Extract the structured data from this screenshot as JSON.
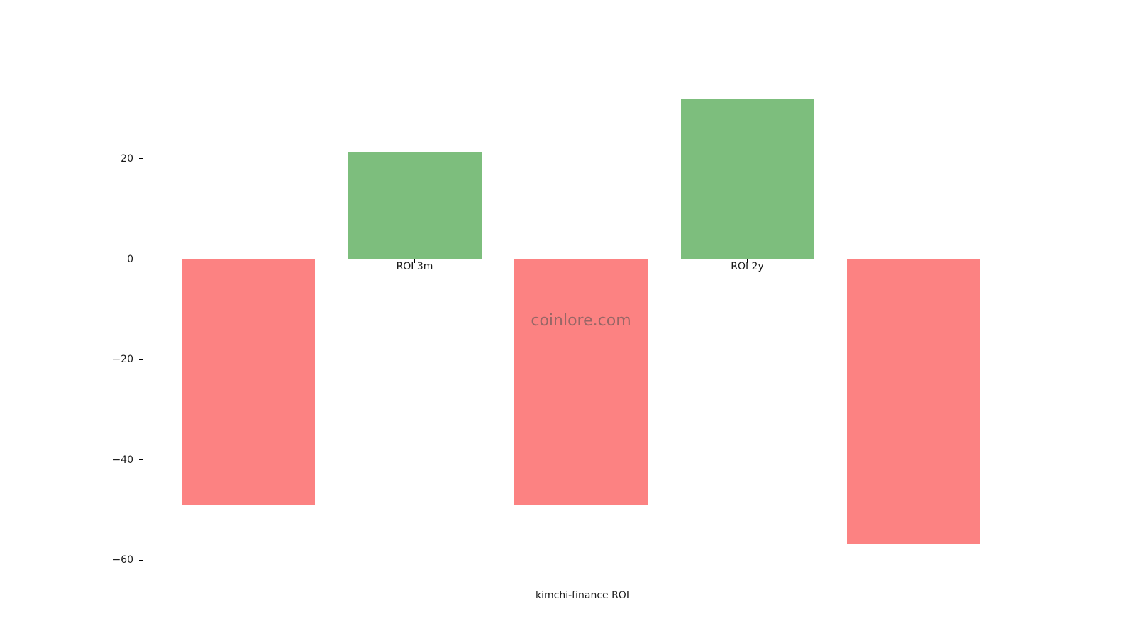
{
  "chart_data": {
    "type": "bar",
    "title": "",
    "xlabel": "kimchi-finance ROI",
    "ylabel": "",
    "bars": [
      {
        "label": "",
        "value": -49
      },
      {
        "label": "ROI 3m",
        "value": 21.2
      },
      {
        "label": "",
        "value": -49
      },
      {
        "label": "ROI 2y",
        "value": 32
      },
      {
        "label": "",
        "value": -56.8
      }
    ],
    "categories": [
      "",
      "ROI 3m",
      "",
      "ROI 2y",
      ""
    ],
    "values": [
      -49,
      21.2,
      -49,
      32,
      -56.8
    ],
    "yticks": [
      {
        "value": 20,
        "label": "20"
      },
      {
        "value": 0,
        "label": "0"
      },
      {
        "value": -20,
        "label": "−20"
      },
      {
        "value": -40,
        "label": "−40"
      },
      {
        "value": -60,
        "label": "−60"
      }
    ],
    "ylim": [
      -61.7,
      36.6
    ],
    "grid": false,
    "legend": false,
    "colors": {
      "positive": "#7DBE7D",
      "negative": "#FC8282",
      "axis": "#000000",
      "text": "#1a1a1a"
    }
  },
  "watermark": {
    "text": "coinlore.com",
    "color": "#555555",
    "opacity": 0.6
  }
}
